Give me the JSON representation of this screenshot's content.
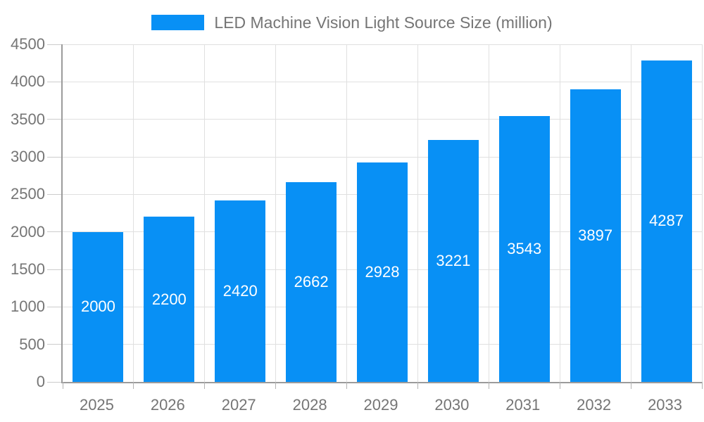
{
  "legend": {
    "label": "LED Machine Vision Light Source Size (million)"
  },
  "chart_data": {
    "type": "bar",
    "title": "LED Machine Vision Light Source Size (million)",
    "categories": [
      "2025",
      "2026",
      "2027",
      "2028",
      "2029",
      "2030",
      "2031",
      "2032",
      "2033"
    ],
    "series": [
      {
        "name": "LED Machine Vision Light Source Size (million)",
        "values": [
          2000,
          2200,
          2420,
          2662,
          2928,
          3221,
          3543,
          3897,
          4287
        ]
      }
    ],
    "xlabel": "",
    "ylabel": "",
    "ylim": [
      0,
      4500
    ],
    "ytick_step": 500,
    "grid": true,
    "legend_position": "top",
    "bar_labels_inside": true,
    "colors": {
      "bar": "#0890f5",
      "bar_label": "#ffffff",
      "axis_line": "#9b9b9b",
      "gridline": "#e0e0e0",
      "tick": "#b3b3b3",
      "axis_text": "#757575"
    }
  }
}
